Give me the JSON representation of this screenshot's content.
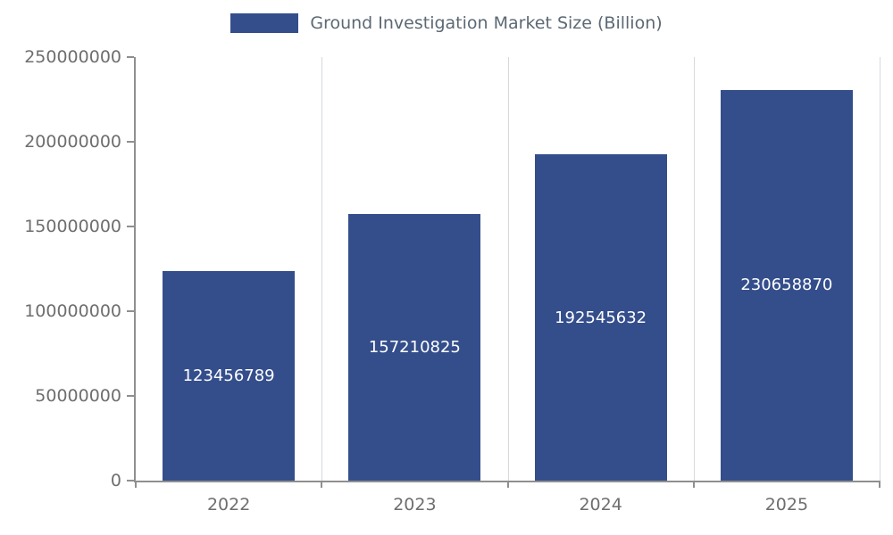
{
  "legend": {
    "label": "Ground Investigation Market Size (Billion)",
    "swatch_color": "#344e8c"
  },
  "chart_data": {
    "type": "bar",
    "title": "Ground Investigation Market Size (Billion)",
    "categories": [
      "2022",
      "2023",
      "2024",
      "2025"
    ],
    "values": [
      123456789,
      157210825,
      192545632,
      230658870
    ],
    "value_labels": [
      "123456789",
      "157210825",
      "192545632",
      "230658870"
    ],
    "series": [
      {
        "name": "Ground Investigation Market Size (Billion)",
        "values": [
          123456789,
          157210825,
          192545632,
          230658870
        ]
      }
    ],
    "xlabel": "",
    "ylabel": "",
    "ylim": [
      0,
      250000000
    ],
    "yticks": [
      0,
      50000000,
      100000000,
      150000000,
      200000000,
      250000000
    ],
    "ytick_labels": [
      "0",
      "50000000",
      "100000000",
      "150000000",
      "200000000",
      "250000000"
    ],
    "grid": "vertical-splitlines",
    "legend_position": "top-center",
    "bar_color": "#344e8c",
    "value_label_color": "#ffffff",
    "background_color": "#ffffff"
  }
}
